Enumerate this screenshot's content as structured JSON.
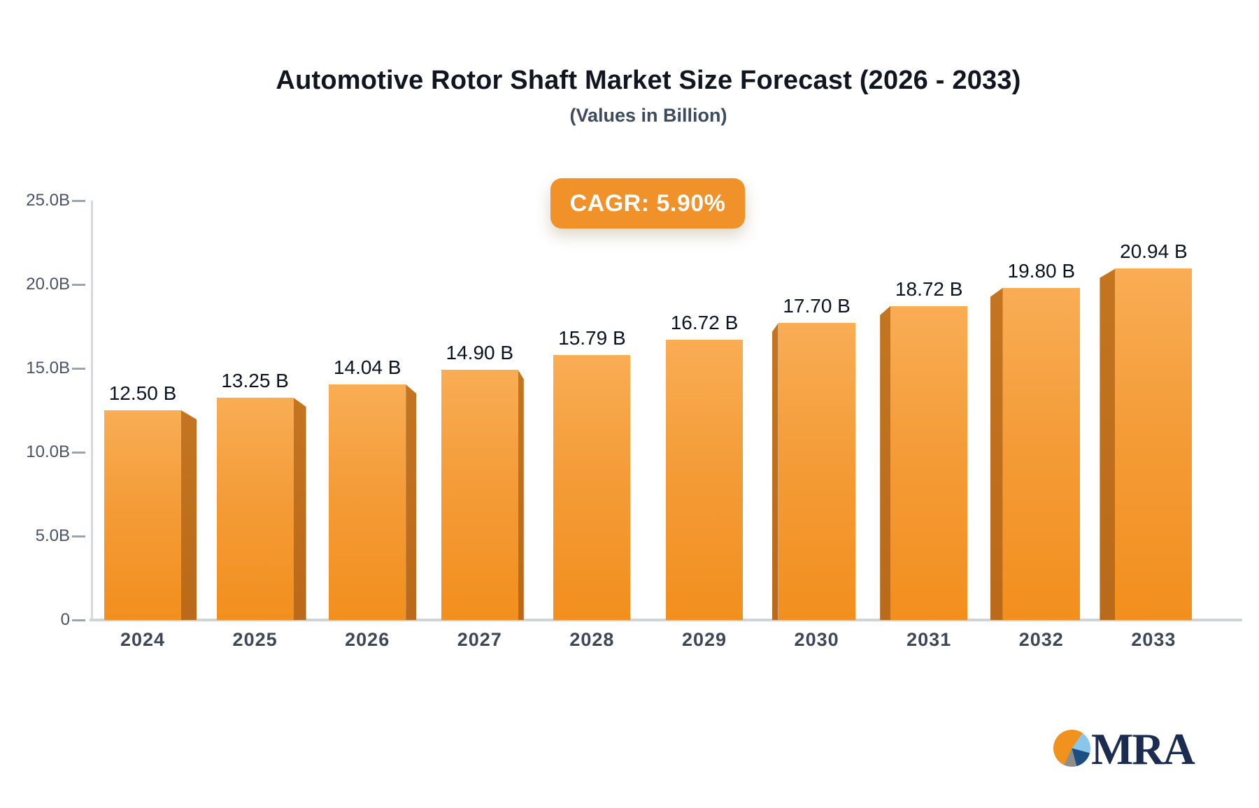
{
  "title": "Automotive Rotor Shaft Market Size Forecast (2026 - 2033)",
  "subtitle": "(Values in Billion)",
  "badge": {
    "label": "CAGR: 5.90%"
  },
  "chart_data": {
    "type": "bar",
    "categories": [
      "2024",
      "2025",
      "2026",
      "2027",
      "2028",
      "2029",
      "2030",
      "2031",
      "2032",
      "2033"
    ],
    "values": [
      12.5,
      13.25,
      14.04,
      14.9,
      15.79,
      16.72,
      17.7,
      18.72,
      19.8,
      20.94
    ],
    "value_labels": [
      "12.50 B",
      "13.25 B",
      "14.04 B",
      "14.90 B",
      "15.79 B",
      "16.72 B",
      "17.70 B",
      "18.72 B",
      "19.80 B",
      "20.94 B"
    ],
    "title": "Automotive Rotor Shaft Market Size Forecast (2026 - 2033)",
    "subtitle": "(Values in Billion)",
    "xlabel": "",
    "ylabel": "",
    "ylim": [
      0,
      25
    ],
    "ytick_labels": [
      "25.0B",
      "20.0B",
      "15.0B",
      "10.0B",
      "5.0B",
      "0"
    ],
    "grid": false,
    "legend": false,
    "bar_style": "3d-perspective",
    "bar_color_top": "#f9ad55",
    "bar_color_bottom": "#f28f1e",
    "bar_side_color": "#b96a1a",
    "annotation": "CAGR: 5.90%"
  },
  "logo": {
    "text": "MRA",
    "pie_colors": [
      "#f0921e",
      "#8ac6e8",
      "#1b4f82",
      "#908d8a"
    ]
  },
  "colors": {
    "accent_orange": "#f0912a",
    "title_text": "#10151f",
    "axis_text": "#4a5263",
    "category_text": "#3d4757",
    "axis_line": "#d6d8dc"
  }
}
